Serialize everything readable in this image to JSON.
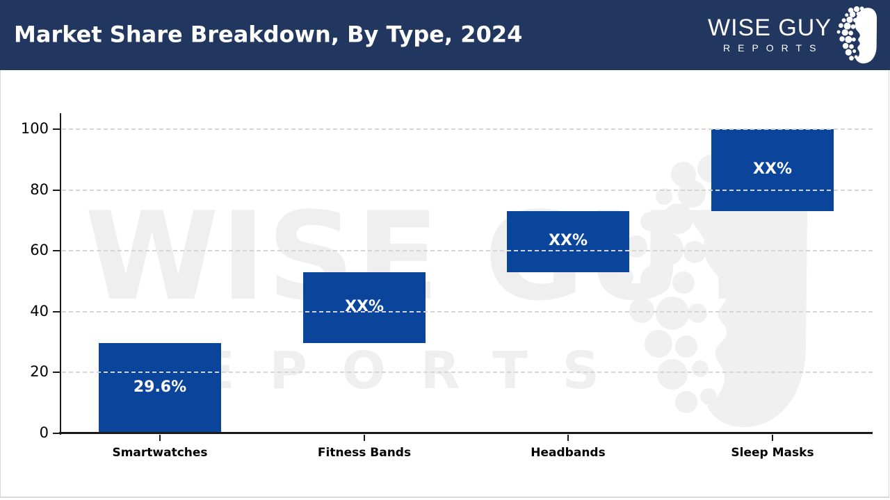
{
  "header": {
    "title": "Market Share Breakdown, By Type, 2024",
    "bg_color": "#21375F",
    "logo": {
      "line1": "WISE GUY",
      "line2": "REPORTS"
    }
  },
  "watermark": {
    "line1": "WISE GUY",
    "line2": "REPORTS"
  },
  "chart_data": {
    "type": "bar",
    "subtype": "waterfall",
    "title": "Market Share Breakdown, By Type, 2024",
    "categories": [
      "Smartwatches",
      "Fitness Bands",
      "Headbands",
      "Sleep Masks"
    ],
    "segments": [
      {
        "category": "Smartwatches",
        "start": 0,
        "end": 29.6,
        "label": "29.6%"
      },
      {
        "category": "Fitness Bands",
        "start": 29.6,
        "end": 53,
        "label": "XX%"
      },
      {
        "category": "Headbands",
        "start": 53,
        "end": 73,
        "label": "XX%"
      },
      {
        "category": "Sleep Masks",
        "start": 73,
        "end": 100,
        "label": "XX%"
      }
    ],
    "y_ticks": [
      0,
      20,
      40,
      60,
      80,
      100
    ],
    "ylim": [
      0,
      100
    ],
    "xlabel": "",
    "ylabel": "",
    "bar_color": "#0A459B",
    "bar_label_color": "#ffffff",
    "grid": true,
    "grid_style": "dashed",
    "legend": "none"
  }
}
